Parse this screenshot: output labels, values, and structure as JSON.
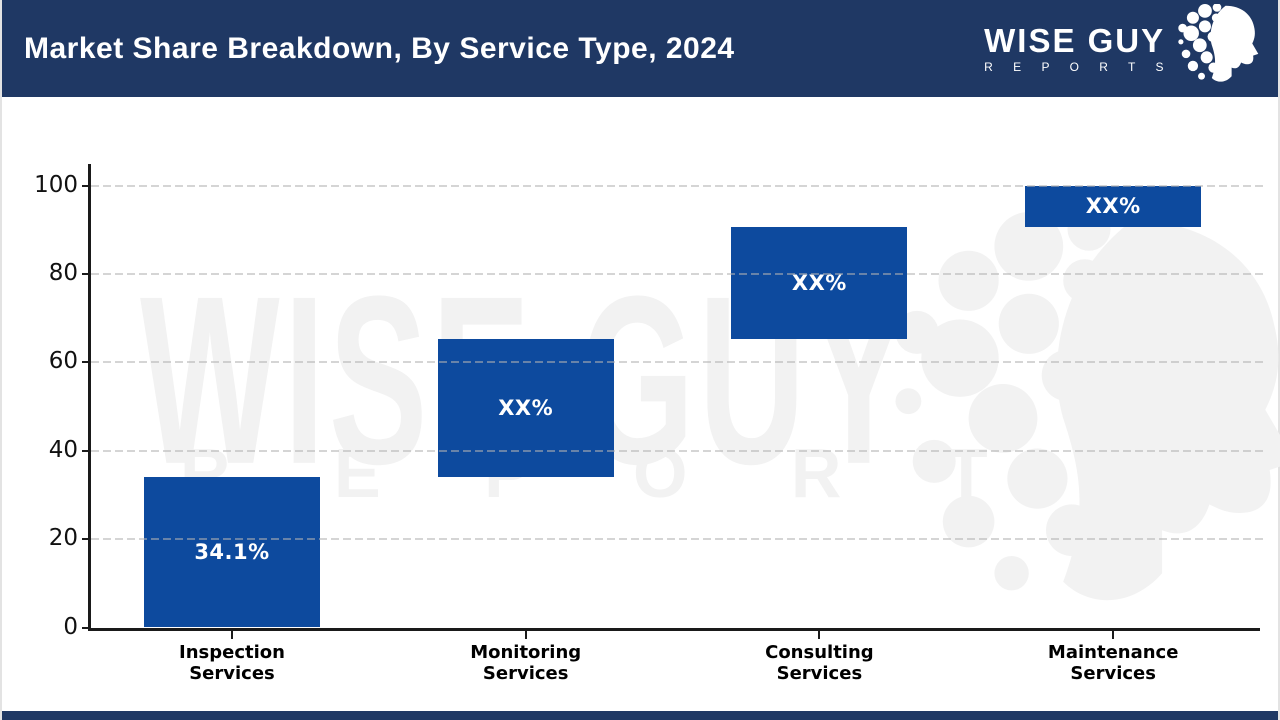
{
  "header": {
    "title": "Market Share Breakdown, By Service Type, 2024",
    "brand": {
      "line1": "WISE GUY",
      "line2": "R E P O R T S"
    }
  },
  "watermark": {
    "line1": "WISE GUY",
    "line2": "R E P O R T S"
  },
  "chart_data": {
    "type": "bar",
    "subtype": "waterfall",
    "title": "Market Share Breakdown, By Service Type, 2024",
    "xlabel": "",
    "ylabel": "",
    "ylim": [
      0,
      105
    ],
    "yticks": [
      0,
      20,
      40,
      60,
      80,
      100
    ],
    "grid": "horizontal-dashed",
    "legend": "none",
    "categories": [
      {
        "line1": "Inspection",
        "line2": "Services"
      },
      {
        "line1": "Monitoring",
        "line2": "Services"
      },
      {
        "line1": "Consulting",
        "line2": "Services"
      },
      {
        "line1": "Maintenance",
        "line2": "Services"
      }
    ],
    "segments": [
      {
        "category": "Inspection Services",
        "start": 0,
        "end": 34.1,
        "value": 34.1,
        "label": "34.1%"
      },
      {
        "category": "Monitoring Services",
        "start": 34.1,
        "end": 65.3,
        "value": 31.2,
        "label": "XX%"
      },
      {
        "category": "Consulting Services",
        "start": 65.3,
        "end": 90.7,
        "value": 25.4,
        "label": "XX%"
      },
      {
        "category": "Maintenance Services",
        "start": 90.7,
        "end": 100,
        "value": 9.3,
        "label": "XX%"
      }
    ],
    "bar_color": "#0d4a9e",
    "bar_label_color": "#ffffff"
  },
  "colors": {
    "header_bg": "#1f3864",
    "footer_bg": "#1f3864",
    "axis": "#1a1a1a",
    "grid": "#b2b2b2",
    "watermark": "#f2f2f2"
  }
}
